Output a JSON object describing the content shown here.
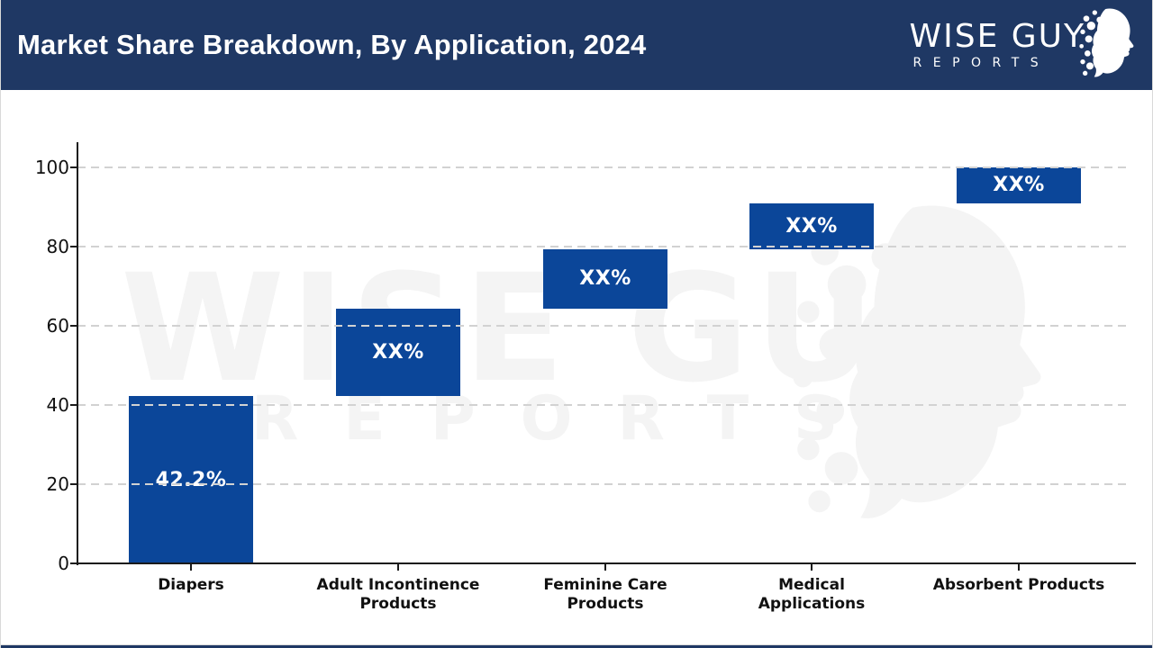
{
  "header": {
    "title": "Market Share Breakdown, By Application, 2024",
    "logo": {
      "line1": "WISE GUY",
      "line2": "REPORTS"
    }
  },
  "watermark": {
    "line1": "WISE GUY",
    "line2": "REPORTS"
  },
  "colors": {
    "header_bg": "#1F3864",
    "bottom_strip": "#1F3864",
    "bar": "#0B4699",
    "bar_label": "#FFFFFF",
    "gridline": "#D2D2D2",
    "axis": "#1A1A1A",
    "watermark": "#F4F4F4"
  },
  "chart_data": {
    "type": "bar",
    "subtype": "waterfall",
    "title": "Market Share Breakdown, By Application, 2024",
    "categories": [
      "Diapers",
      "Adult Incontinence Products",
      "Feminine Care Products",
      "Medical Applications",
      "Absorbent Products"
    ],
    "category_lines": [
      [
        "Diapers"
      ],
      [
        "Adult Incontinence",
        "Products"
      ],
      [
        "Feminine Care",
        "Products"
      ],
      [
        "Medical",
        "Applications"
      ],
      [
        "Absorbent Products"
      ]
    ],
    "segments": [
      {
        "category": "Diapers",
        "start": 0,
        "end": 42.2,
        "label": "42.2%"
      },
      {
        "category": "Adult Incontinence Products",
        "start": 42.2,
        "end": 64.4,
        "label": "XX%"
      },
      {
        "category": "Feminine Care Products",
        "start": 64.4,
        "end": 79.3,
        "label": "XX%"
      },
      {
        "category": "Medical Applications",
        "start": 79.3,
        "end": 91.0,
        "label": "XX%"
      },
      {
        "category": "Absorbent Products",
        "start": 91.0,
        "end": 100.0,
        "label": "XX%"
      }
    ],
    "xlabel": "",
    "ylabel": "",
    "ylim": [
      0,
      106
    ],
    "yticks": [
      0,
      20,
      40,
      60,
      80,
      100
    ],
    "legend": "none",
    "grid": "horizontal-dashed",
    "gridlines_above_bars": true
  }
}
